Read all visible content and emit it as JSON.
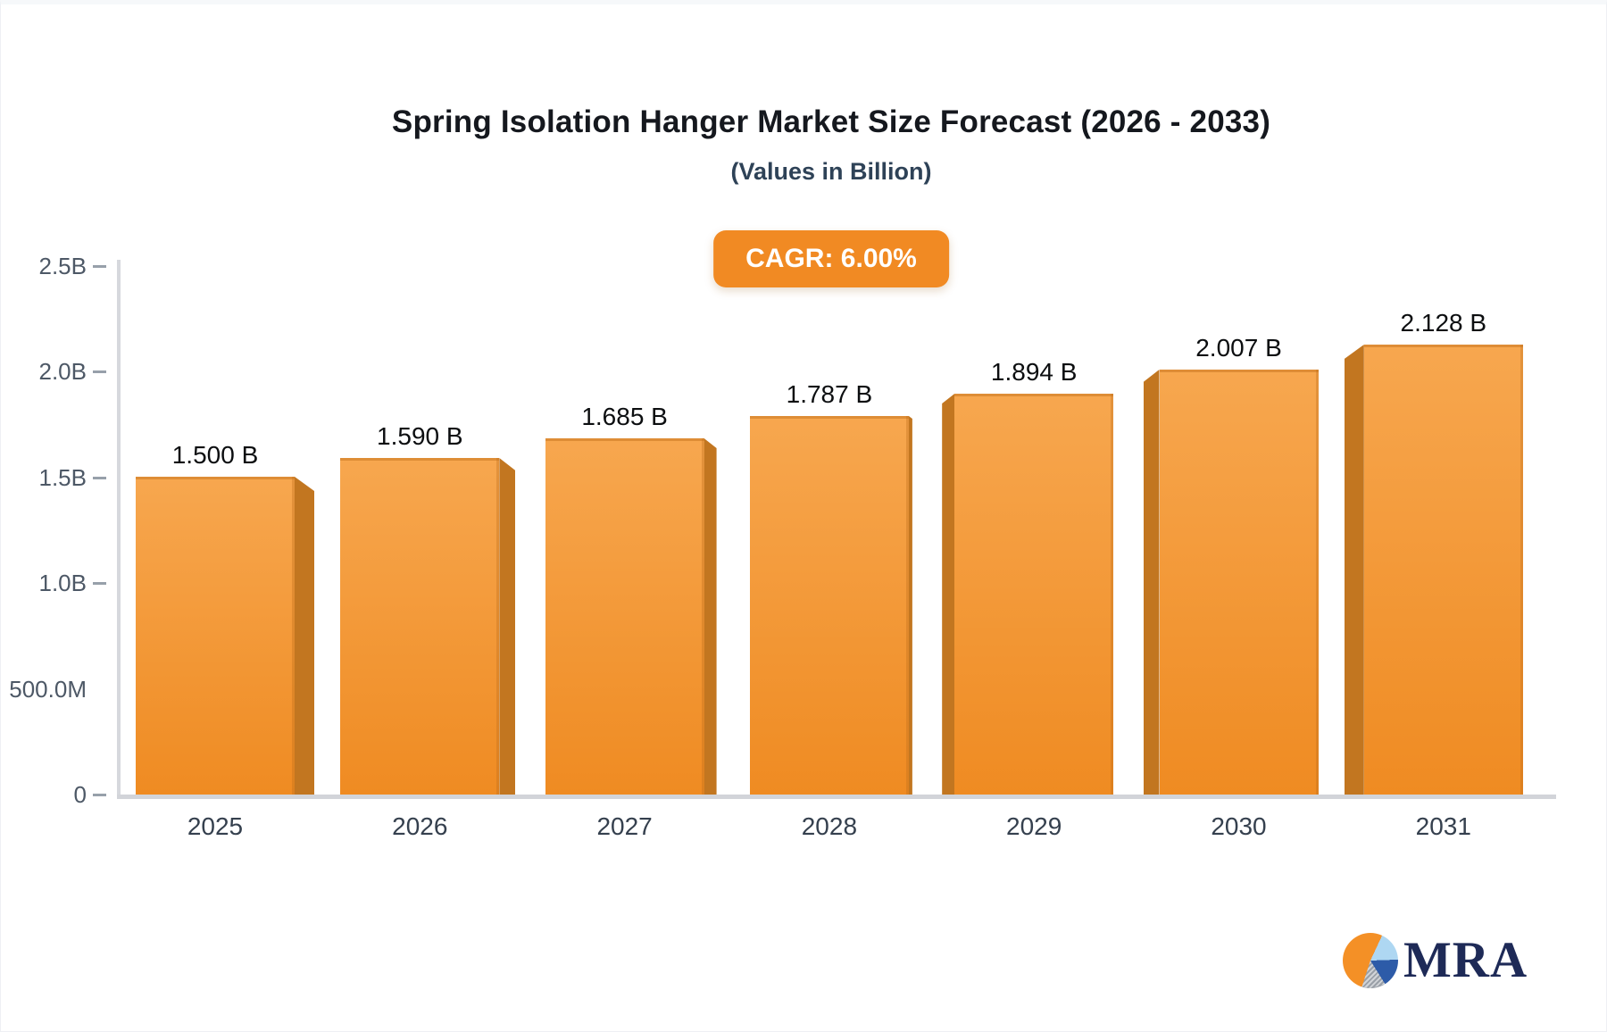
{
  "header": {
    "title": "Spring Isolation Hanger Market Size Forecast (2026 - 2033)",
    "subtitle": "(Values in Billion)",
    "cagr_badge": "CAGR: 6.00%"
  },
  "chart_data": {
    "type": "bar",
    "categories": [
      "2025",
      "2026",
      "2027",
      "2028",
      "2029",
      "2030",
      "2031"
    ],
    "values": [
      1.5,
      1.59,
      1.685,
      1.787,
      1.894,
      2.007,
      2.128
    ],
    "value_labels": [
      "1.500 B",
      "1.590 B",
      "1.685 B",
      "1.787 B",
      "1.894 B",
      "2.007 B",
      "2.128 B"
    ],
    "title": "Spring Isolation Hanger Market Size Forecast (2026 - 2033)",
    "subtitle": "(Values in Billion)",
    "xlabel": "",
    "ylabel": "",
    "ylim": [
      0,
      2.5
    ],
    "yticks": [
      {
        "value": 2.5,
        "label": "2.5B",
        "tick": true
      },
      {
        "value": 2.0,
        "label": "2.0B",
        "tick": true
      },
      {
        "value": 1.5,
        "label": "1.5B",
        "tick": true
      },
      {
        "value": 1.0,
        "label": "1.0B",
        "tick": true
      },
      {
        "value": 0.5,
        "label": "500.0M",
        "tick": false
      },
      {
        "value": 0,
        "label": "0",
        "tick": true
      }
    ],
    "grid": false,
    "legend": false,
    "bar_style": "3d-extruded, vanishing point at center"
  },
  "colors": {
    "bar_top": "#f7a74f",
    "bar_bottom": "#ef8b22",
    "bar_side": "#c27620",
    "badge_bg": "#f18a23",
    "axis_line": "#d2d4d9",
    "tick_text": "#4d5866",
    "logo_navy": "#1e2a57",
    "pie_orange": "#f49026",
    "pie_light_blue": "#aed7f2",
    "pie_blue": "#2d5ba8",
    "pie_gray": "#9aa0a8"
  },
  "logo": {
    "text": "MRA",
    "icon": "pie-chart"
  }
}
